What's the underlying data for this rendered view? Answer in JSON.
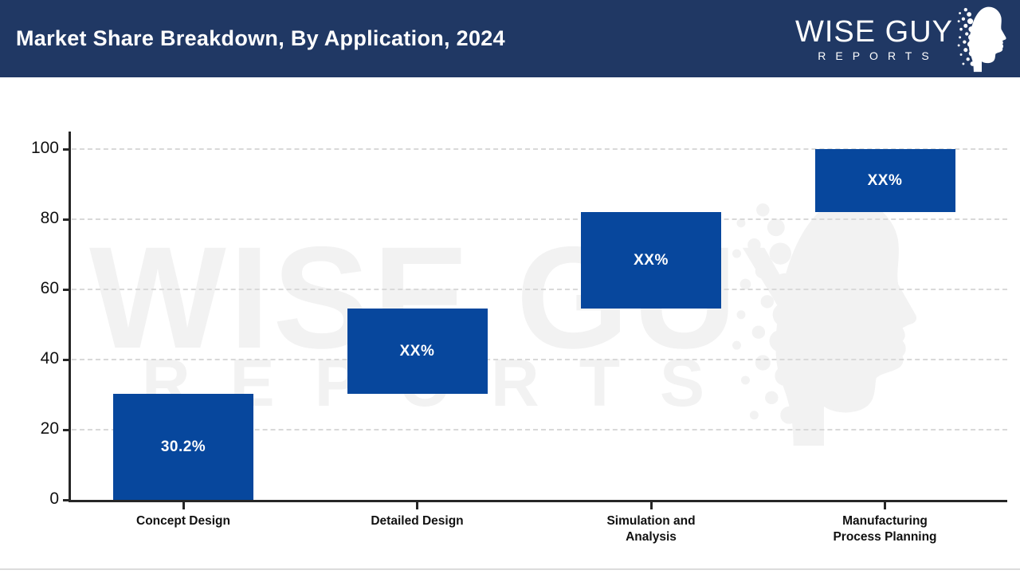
{
  "header": {
    "title": "Market Share Breakdown, By Application, 2024",
    "logo_line1": "WISE GUY",
    "logo_line2": "REPORTS"
  },
  "watermark": {
    "line1": "WISE GUY",
    "line2": "REPORTS"
  },
  "chart_data": {
    "type": "bar",
    "variant": "waterfall",
    "title": "Market Share Breakdown, By Application, 2024",
    "categories": [
      "Concept Design",
      "Detailed Design",
      "Simulation and\nAnalysis",
      "Manufacturing\nProcess Planning"
    ],
    "segments": [
      {
        "category": "Concept Design",
        "start": 0,
        "end": 30.2,
        "label": "30.2%"
      },
      {
        "category": "Detailed Design",
        "start": 30.2,
        "end": 54.5,
        "label": "XX%"
      },
      {
        "category": "Simulation and Analysis",
        "start": 54.5,
        "end": 82,
        "label": "XX%"
      },
      {
        "category": "Manufacturing Process Planning",
        "start": 82,
        "end": 100,
        "label": "XX%"
      }
    ],
    "yticks": [
      0,
      20,
      40,
      60,
      80,
      100
    ],
    "ylim": [
      0,
      105
    ],
    "grid": true,
    "legend_position": "none",
    "colors": {
      "bar": "#07479d",
      "header_bg": "#203864",
      "grid": "#d9d9d9",
      "axis": "#262626",
      "bar_label": "#ffffff",
      "watermark": "#f2f2f2"
    }
  }
}
